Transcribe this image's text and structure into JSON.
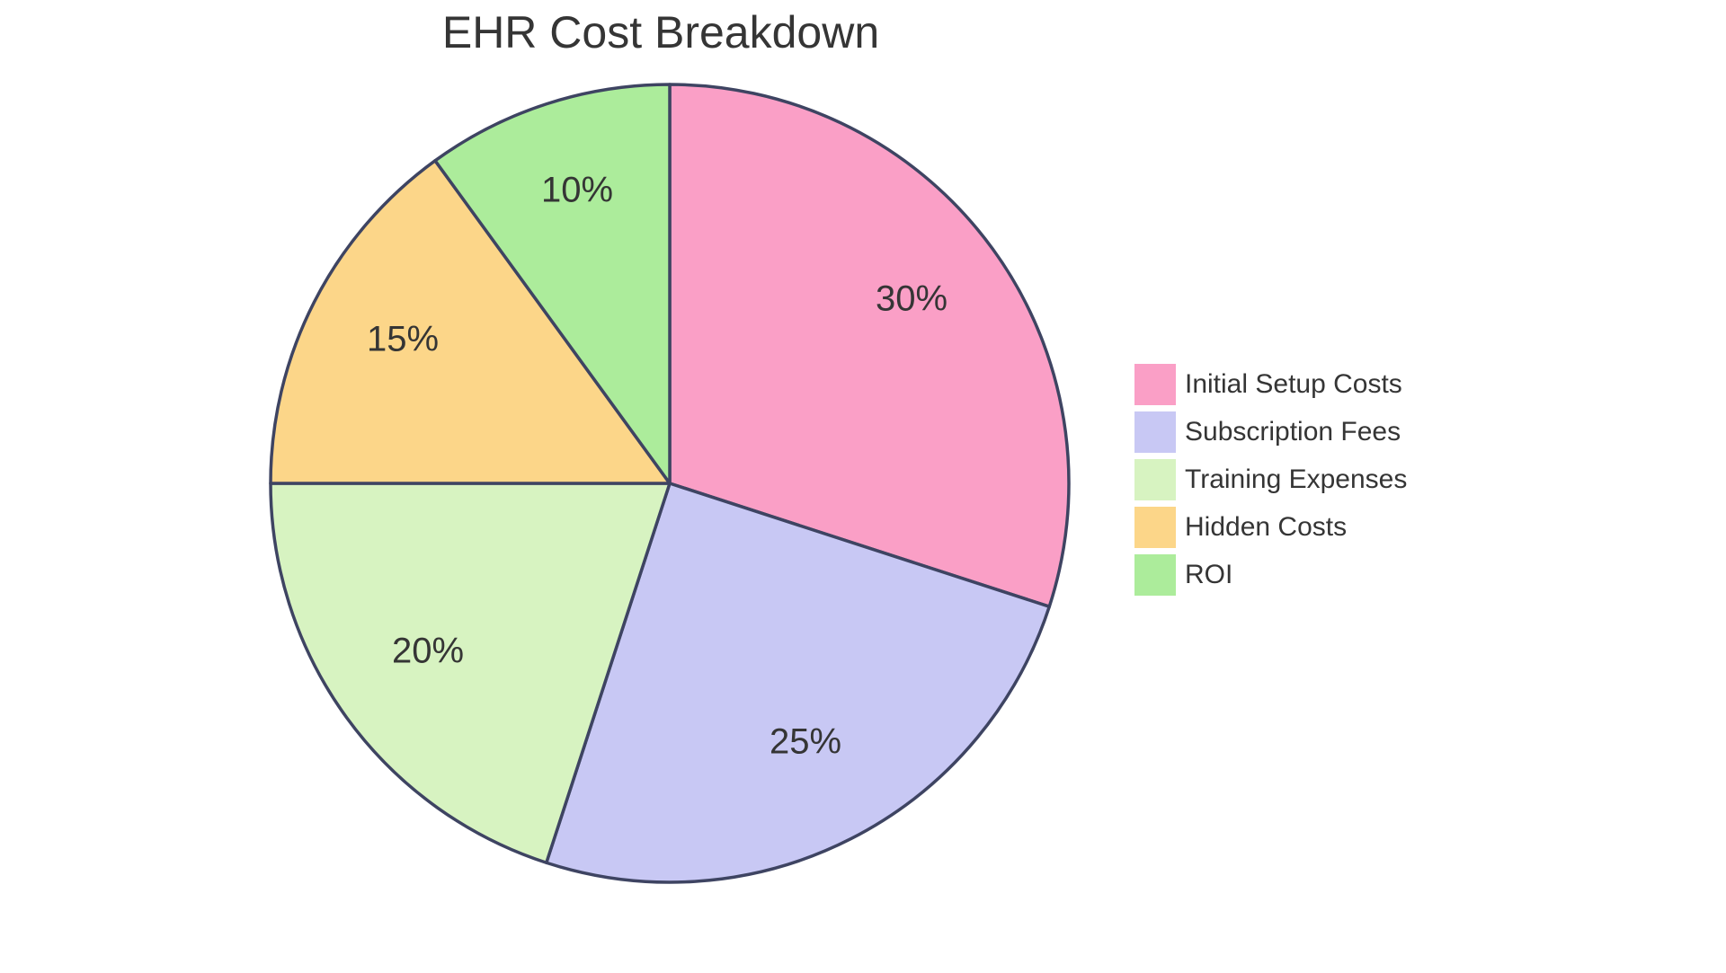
{
  "chart_data": {
    "type": "pie",
    "title": "EHR Cost Breakdown",
    "categories": [
      "Initial Setup Costs",
      "Subscription Fees",
      "Training Expenses",
      "Hidden Costs",
      "ROI"
    ],
    "values": [
      30,
      25,
      20,
      15,
      10
    ],
    "slices": [
      {
        "label": "Initial Setup Costs",
        "value": 30,
        "pct_label": "30%",
        "color": "#FA9FC6"
      },
      {
        "label": "Subscription Fees",
        "value": 25,
        "pct_label": "25%",
        "color": "#C8C8F4"
      },
      {
        "label": "Training Expenses",
        "value": 20,
        "pct_label": "20%",
        "color": "#D7F3C1"
      },
      {
        "label": "Hidden Costs",
        "value": 15,
        "pct_label": "15%",
        "color": "#FCD689"
      },
      {
        "label": "ROI",
        "value": 10,
        "pct_label": "10%",
        "color": "#ACEC9B"
      }
    ],
    "start_angle": "top",
    "direction": "clockwise",
    "edge_color": "#3E4462",
    "edge_width": 3.5,
    "text_color": "#353535",
    "background": "#FFFFFF",
    "legend_position": "right"
  }
}
